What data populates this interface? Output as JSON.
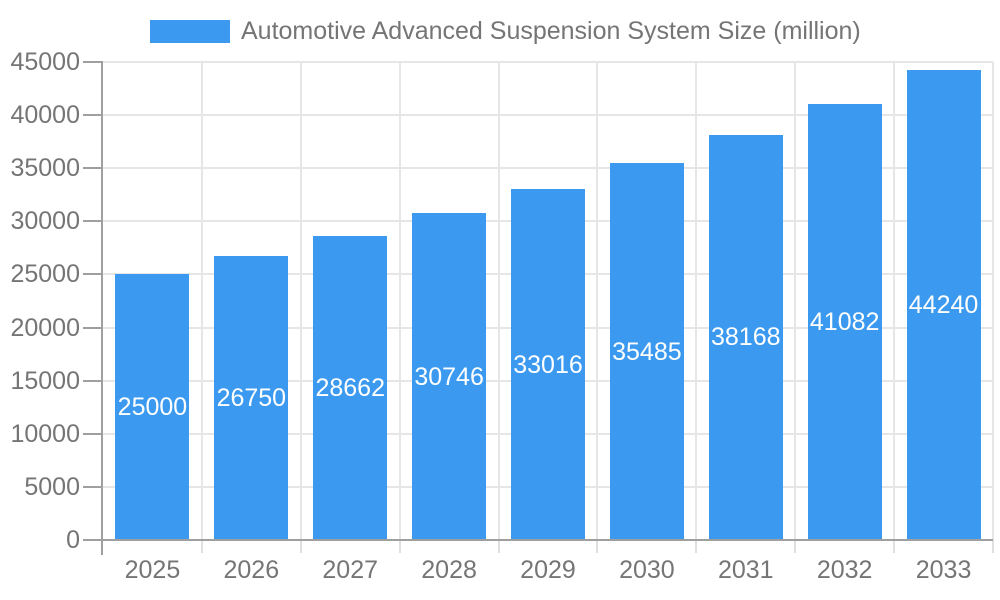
{
  "legend": {
    "label": "Automotive Advanced Suspension System Size (million)"
  },
  "chart_data": {
    "type": "bar",
    "title": "Automotive Advanced Suspension System Size (million)",
    "categories": [
      "2025",
      "2026",
      "2027",
      "2028",
      "2029",
      "2030",
      "2031",
      "2032",
      "2033"
    ],
    "values": [
      25000,
      26750,
      28662,
      30746,
      33016,
      35485,
      38168,
      41082,
      44240
    ],
    "xlabel": "",
    "ylabel": "",
    "ylim": [
      0,
      45000
    ],
    "ytick_step": 5000,
    "grid": true,
    "legend_position": "top",
    "value_labels": "inside-center"
  },
  "colors": {
    "bar": "#3b9af0",
    "bar_label": "#ffffff",
    "text": "#757575",
    "axis_line": "#9f9f9f",
    "gridline": "#e6e6e6",
    "minor_tick": "#e0e0e0",
    "background": "#ffffff"
  }
}
